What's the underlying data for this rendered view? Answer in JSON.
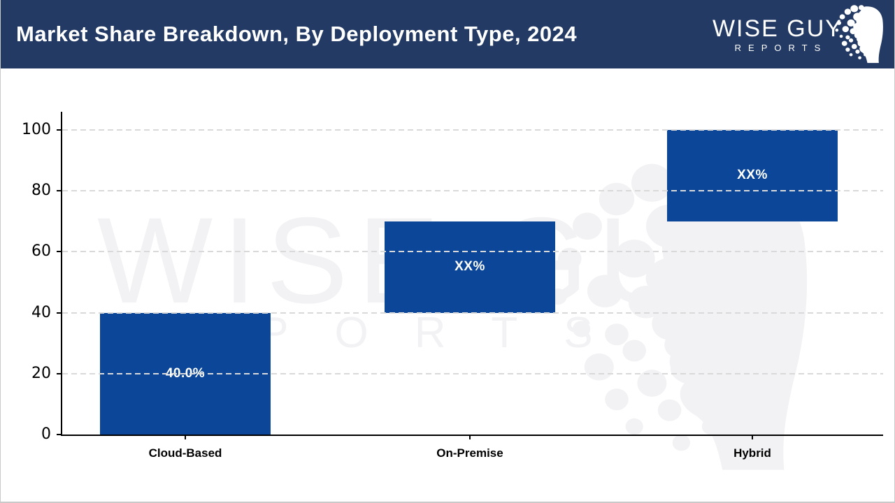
{
  "header": {
    "title": "Market Share Breakdown, By Deployment Type, 2024",
    "logo": {
      "name": "WISE GUY",
      "sub": "REPORTS"
    }
  },
  "watermark": {
    "name": "WISE GUY",
    "sub": "REPORTS"
  },
  "chart_data": {
    "type": "bar",
    "subtype": "floating-segment-waterfall",
    "title": "Market Share Breakdown, By Deployment Type, 2024",
    "categories": [
      "Cloud-Based",
      "On-Premise",
      "Hybrid"
    ],
    "segments": [
      {
        "category": "Cloud-Based",
        "start": 0,
        "end": 40,
        "label": "40.0%"
      },
      {
        "category": "On-Premise",
        "start": 40,
        "end": 70,
        "label": "XX%"
      },
      {
        "category": "Hybrid",
        "start": 70,
        "end": 100,
        "label": "XX%"
      }
    ],
    "yticks": [
      0,
      20,
      40,
      60,
      80,
      100
    ],
    "ylim": [
      0,
      100
    ],
    "xlabel": "",
    "ylabel": "",
    "legend": "none",
    "grid": "horizontal-dashed",
    "colors": {
      "bar": "#0b4699",
      "bar_label": "#ffffff",
      "grid": "#d9d9d9",
      "axis": "#000000",
      "header_bg": "#233a64",
      "watermark": "#f2f2f4"
    }
  }
}
